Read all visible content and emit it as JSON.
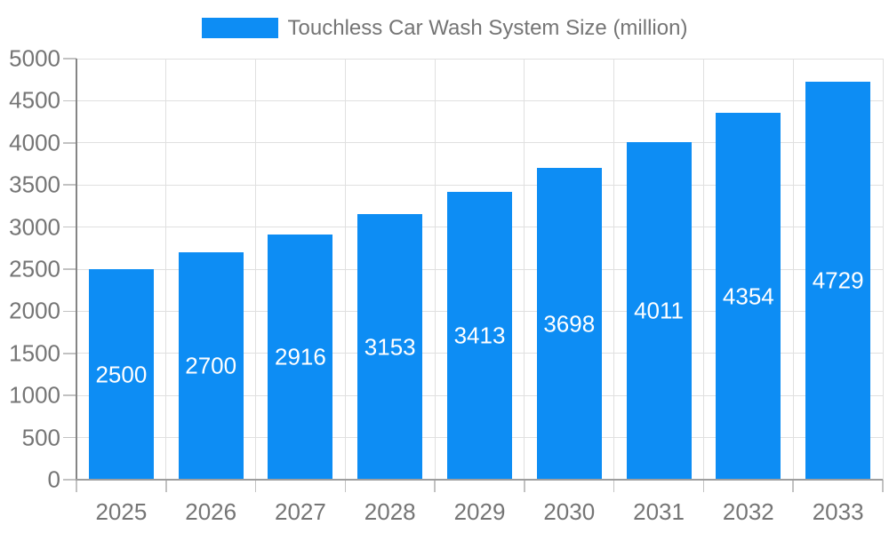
{
  "chart_data": {
    "type": "bar",
    "title": "Touchless Car Wash System Size (million)",
    "categories": [
      "2025",
      "2026",
      "2027",
      "2028",
      "2029",
      "2030",
      "2031",
      "2032",
      "2033"
    ],
    "values": [
      2500,
      2700,
      2916,
      3153,
      3413,
      3698,
      4011,
      4354,
      4729
    ],
    "xlabel": "",
    "ylabel": "",
    "ylim": [
      0,
      5000
    ],
    "ytick_step": 500,
    "grid": true,
    "legend_position": "top-center",
    "value_label_position": "inside-center"
  },
  "colors": {
    "background": "#ffffff",
    "bar": "#0d8df4",
    "grid_line": "#e0e0e0",
    "y_axis_line": "#858585",
    "x_axis_line": "#9e9e9e",
    "tick_mark": "#c2c2c2",
    "axis_label_text": "#757575",
    "legend_text": "#757575",
    "bar_value_text": "#ffffff"
  }
}
